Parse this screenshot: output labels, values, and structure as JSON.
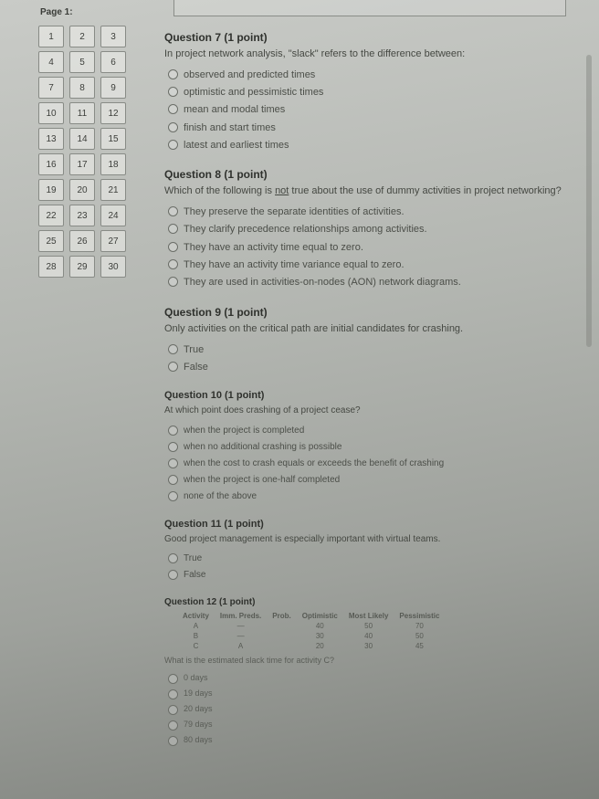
{
  "page_label": "Page 1:",
  "nav_cells": [
    "1",
    "2",
    "3",
    "4",
    "5",
    "6",
    "7",
    "8",
    "9",
    "10",
    "11",
    "12",
    "13",
    "14",
    "15",
    "16",
    "17",
    "18",
    "19",
    "20",
    "21",
    "22",
    "23",
    "24",
    "25",
    "26",
    "27",
    "28",
    "29",
    "30"
  ],
  "q7": {
    "title": "Question 7 (1 point)",
    "prompt": "In project network analysis, \"slack\" refers to the difference between:",
    "options": [
      "observed and predicted times",
      "optimistic and pessimistic times",
      "mean and modal times",
      "finish and start times",
      "latest and earliest times"
    ]
  },
  "q8": {
    "title": "Question 8 (1 point)",
    "prompt_pre": "Which of the following is ",
    "prompt_under": "not",
    "prompt_post": " true about the use of dummy activities in project networking?",
    "options": [
      "They preserve the separate identities of activities.",
      "They clarify precedence relationships among activities.",
      "They have an activity time equal to zero.",
      "They have an activity time variance equal to zero.",
      "They are used in activities-on-nodes (AON) network diagrams."
    ]
  },
  "q9": {
    "title": "Question 9 (1 point)",
    "prompt": "Only activities on the critical path are initial candidates for crashing.",
    "options": [
      "True",
      "False"
    ]
  },
  "q10": {
    "title": "Question 10 (1 point)",
    "prompt": "At which point does crashing of a project cease?",
    "options": [
      "when the project is completed",
      "when no additional crashing is possible",
      "when the cost to crash equals or exceeds the benefit of crashing",
      "when the project is one-half completed",
      "none of the above"
    ]
  },
  "q11": {
    "title": "Question 11 (1 point)",
    "prompt": "Good project management is especially important with virtual teams.",
    "options": [
      "True",
      "False"
    ]
  },
  "q12": {
    "title": "Question 12 (1 point)",
    "table": {
      "headers": [
        "Activity",
        "Imm. Preds.",
        "Prob.",
        "Optimistic",
        "Most Likely",
        "Pessimistic"
      ],
      "rows": [
        [
          "A",
          "—",
          "",
          "40",
          "50",
          "70"
        ],
        [
          "B",
          "—",
          "",
          "30",
          "40",
          "50"
        ],
        [
          "C",
          "A",
          "",
          "20",
          "30",
          "45"
        ]
      ]
    },
    "prompt": "What is the estimated slack time for activity C?",
    "options": [
      "0 days",
      "19 days",
      "20 days",
      "79 days",
      "80 days"
    ]
  }
}
